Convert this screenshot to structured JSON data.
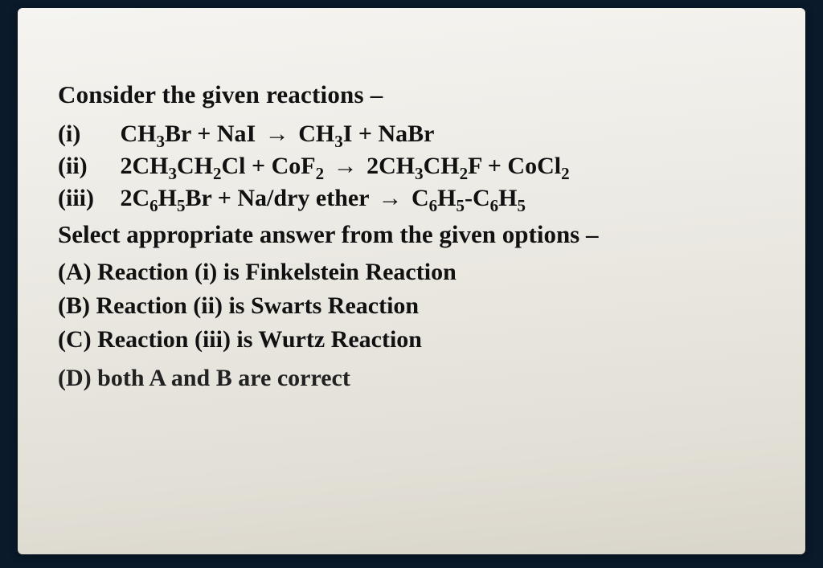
{
  "page": {
    "background_outer": "#0a1a2a",
    "background_inner": "#eceae4",
    "font_family": "Times New Roman",
    "text_color": "#111111",
    "base_fontsize_pt": 22,
    "bold": true
  },
  "stem": "Consider the given reactions –",
  "reactions": {
    "i": {
      "label": "(i)",
      "lhs_a": "CH",
      "lhs_a_sub": "3",
      "lhs_a_tail": "Br",
      "plus1": " + ",
      "lhs_b": "NaI",
      "arrow": "→",
      "rhs_a": "CH",
      "rhs_a_sub": "3",
      "rhs_a_tail": "I",
      "plus2": " + ",
      "rhs_b": "NaBr"
    },
    "ii": {
      "label": "(ii)",
      "text_plain": "2CH3CH2Cl + CoF2 → 2CH3CH2F + CoCl2"
    },
    "iii": {
      "label": "(iii)",
      "text_plain": "2C6H5Br + Na/dry ether → C6H5-C6H5"
    }
  },
  "select_line": "Select appropriate answer from the given options –",
  "options": {
    "A": "(A) Reaction (i) is Finkelstein Reaction",
    "B": "(B) Reaction (ii) is Swarts Reaction",
    "C": "(C) Reaction (iii) is Wurtz Reaction",
    "D": "(D) both A and B are correct"
  }
}
